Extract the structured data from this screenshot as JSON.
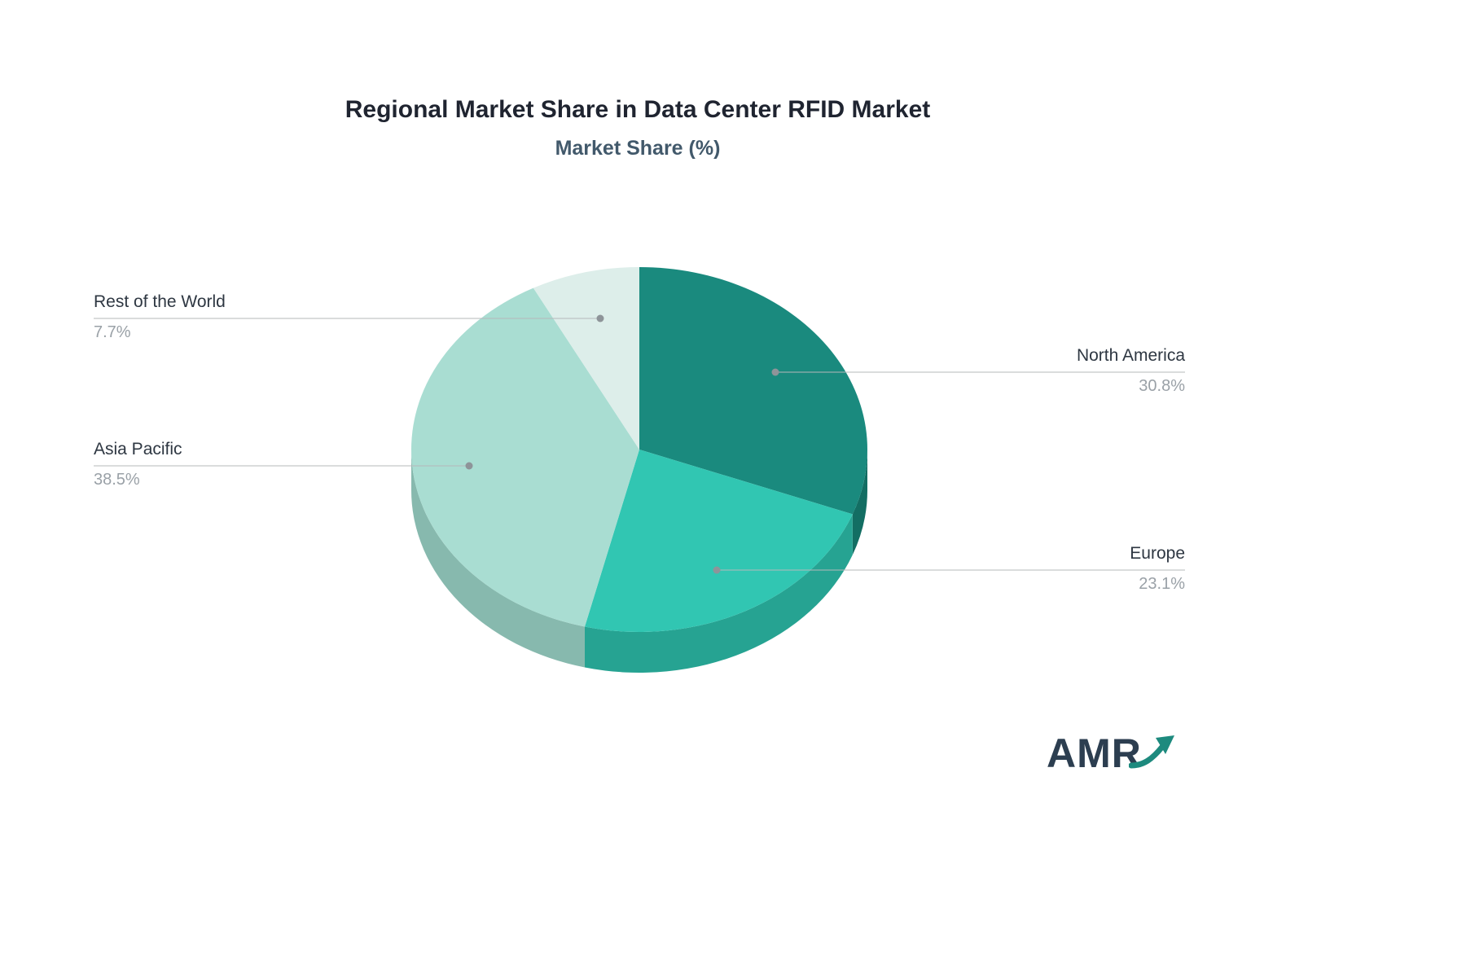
{
  "title": "Regional Market Share in Data Center RFID Market",
  "subtitle": "Market Share (%)",
  "logo": {
    "text": "AMR"
  },
  "chart_data": {
    "type": "pie",
    "title": "Regional Market Share in Data Center RFID Market",
    "subtitle": "Market Share (%)",
    "labels": [
      "North America",
      "Europe",
      "Asia Pacific",
      "Rest of the World"
    ],
    "values": [
      30.8,
      23.1,
      38.5,
      7.7
    ],
    "unit": "%",
    "colors": [
      "#1a8a7e",
      "#31c6b2",
      "#a9ddd2",
      "#ddeeea"
    ],
    "side_colors": [
      "#136e63",
      "#26a392",
      "#87b9ae",
      "#b9d6d0"
    ],
    "start_angle_deg": -90,
    "direction": "clockwise",
    "style": "3d",
    "legend_position": "callouts",
    "callouts": [
      {
        "label": "Rest of the World",
        "value": "7.7%"
      },
      {
        "label": "North America",
        "value": "30.8%"
      },
      {
        "label": "Asia Pacific",
        "value": "38.5%"
      },
      {
        "label": "Europe",
        "value": "23.1%"
      }
    ]
  }
}
